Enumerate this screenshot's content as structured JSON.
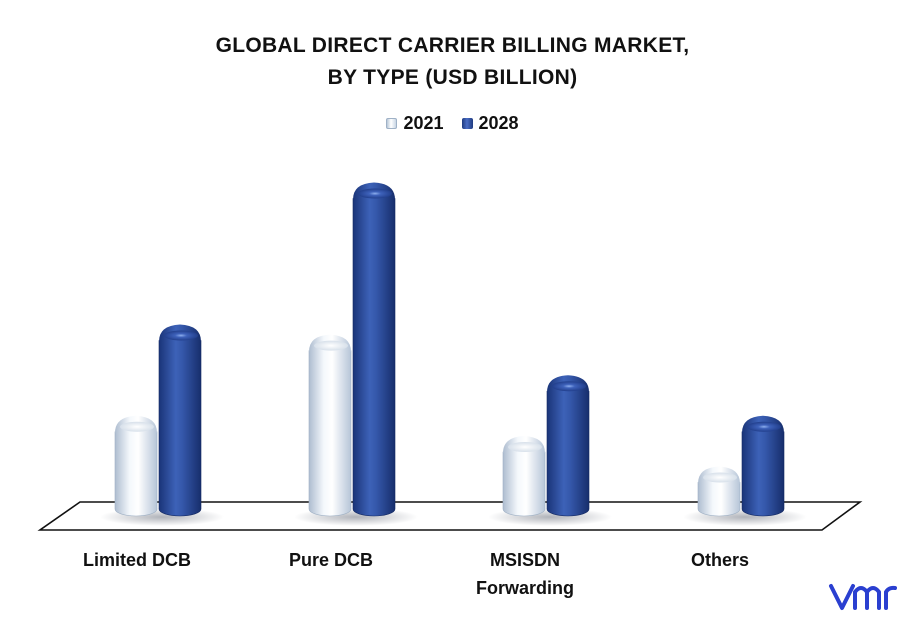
{
  "chart_data": {
    "type": "bar",
    "title": "GLOBAL DIRECT CARRIER BILLING MARKET,",
    "subtitle": "BY TYPE (USD BILLION)",
    "categories": [
      [
        "Limited DCB"
      ],
      [
        "Pure DCB"
      ],
      [
        "MSISDN",
        "Forwarding"
      ],
      [
        "Others"
      ]
    ],
    "series": [
      {
        "name": "2021",
        "values": [
          9,
          17,
          7,
          4
        ],
        "color": "#dfe7f0"
      },
      {
        "name": "2028",
        "values": [
          18,
          32,
          13,
          9
        ],
        "color": "#2a4a9a"
      }
    ],
    "ylim": [
      0,
      36
    ],
    "legend_position": "top-center",
    "grid": false
  },
  "logo": {
    "name": "vmr-logo-icon",
    "color": "#2a3fd0"
  }
}
